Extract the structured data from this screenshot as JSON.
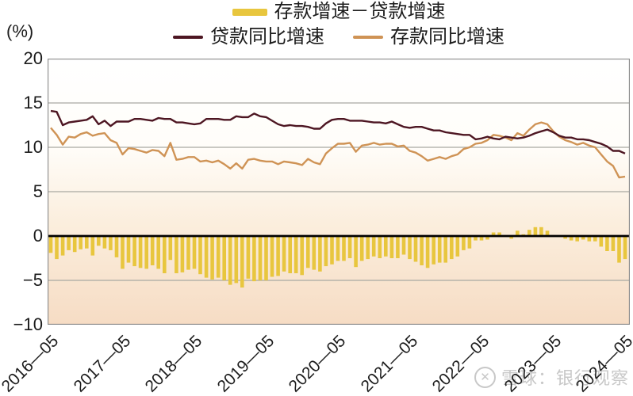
{
  "unit_label": "(%)",
  "colors": {
    "bar": "#e8c63e",
    "loan_line": "#4d1622",
    "deposit_line": "#cf9355",
    "grid": "#a9a9a2",
    "plot_border": "#8d8d8d",
    "zero_line": "#000000",
    "text": "#1c1c1c",
    "watermark": "#c8c8c8",
    "bg_gradient_stops": [
      [
        "0%",
        "#ffffff"
      ],
      [
        "33%",
        "#fffdf9"
      ],
      [
        "62%",
        "#fbeedd"
      ],
      [
        "100%",
        "#f6dcc4"
      ]
    ]
  },
  "legend": [
    {
      "label": "存款增速－贷款增速",
      "type": "bar",
      "color": "#e8c63e"
    },
    {
      "label": "贷款同比增速",
      "type": "line",
      "color": "#4d1622"
    },
    {
      "label": "存款同比增速",
      "type": "line",
      "color": "#cf9355"
    }
  ],
  "watermark": {
    "icon": "xueqiu-logo-icon",
    "glyph": "✕",
    "text": "雪球：银行观察"
  },
  "chart_data": {
    "type": "combo bar+line",
    "x_start": "2016-05",
    "x_end": "2024-05",
    "frequency": "monthly",
    "x_ticks": [
      {
        "index": 0,
        "label": "2016—05"
      },
      {
        "index": 12,
        "label": "2017—05"
      },
      {
        "index": 24,
        "label": "2018—05"
      },
      {
        "index": 36,
        "label": "2019—05"
      },
      {
        "index": 48,
        "label": "2020—05"
      },
      {
        "index": 60,
        "label": "2021—05"
      },
      {
        "index": 72,
        "label": "2022—05"
      },
      {
        "index": 84,
        "label": "2023—05"
      },
      {
        "index": 96,
        "label": "2024—05"
      }
    ],
    "y_ticks": [
      {
        "value": 20,
        "label": "20"
      },
      {
        "value": 15,
        "label": "15"
      },
      {
        "value": 10,
        "label": "10"
      },
      {
        "value": 5,
        "label": "5"
      },
      {
        "value": 0,
        "label": "0"
      },
      {
        "value": -5,
        "label": "−5"
      },
      {
        "value": -10,
        "label": "−10"
      }
    ],
    "grid_values": [
      15,
      10,
      5,
      -5
    ],
    "ylim": [
      -10,
      20
    ],
    "series": [
      {
        "name": "贷款同比增速",
        "type": "line",
        "color": "#4d1622",
        "values": [
          14.1,
          14.0,
          12.5,
          12.8,
          12.9,
          13.0,
          13.1,
          13.5,
          12.6,
          13.0,
          12.4,
          12.9,
          12.9,
          12.9,
          13.2,
          13.2,
          13.1,
          13.0,
          13.3,
          13.2,
          13.2,
          12.8,
          12.8,
          12.7,
          12.6,
          12.7,
          13.2,
          13.2,
          13.2,
          13.1,
          13.1,
          13.5,
          13.4,
          13.4,
          13.8,
          13.5,
          13.4,
          13.0,
          12.6,
          12.4,
          12.5,
          12.4,
          12.4,
          12.3,
          12.1,
          12.1,
          12.7,
          13.1,
          13.2,
          13.2,
          13.0,
          13.0,
          13.0,
          12.9,
          12.8,
          12.8,
          12.7,
          12.9,
          12.6,
          12.3,
          12.2,
          12.3,
          12.3,
          12.1,
          11.9,
          11.9,
          11.7,
          11.6,
          11.5,
          11.4,
          11.4,
          10.9,
          11.0,
          11.2,
          11.0,
          10.9,
          11.2,
          11.1,
          11.0,
          11.1,
          11.3,
          11.6,
          11.8,
          12.0,
          11.7,
          11.3,
          11.1,
          11.1,
          10.9,
          10.9,
          10.8,
          10.6,
          10.4,
          10.1,
          9.6,
          9.6,
          9.3
        ]
      },
      {
        "name": "存款同比增速",
        "type": "line",
        "color": "#cf9355",
        "values": [
          12.2,
          11.4,
          10.3,
          11.2,
          11.1,
          11.5,
          11.7,
          11.3,
          11.5,
          11.6,
          10.8,
          10.5,
          9.2,
          9.9,
          9.8,
          9.6,
          9.4,
          9.7,
          9.6,
          9.0,
          10.5,
          8.6,
          8.7,
          8.9,
          8.9,
          8.4,
          8.5,
          8.3,
          8.5,
          8.1,
          7.6,
          8.2,
          7.6,
          8.6,
          8.7,
          8.5,
          8.4,
          8.4,
          8.1,
          8.4,
          8.3,
          8.2,
          8.0,
          8.7,
          8.3,
          8.1,
          9.3,
          9.9,
          10.4,
          10.4,
          10.5,
          9.5,
          10.2,
          10.3,
          10.5,
          10.3,
          10.4,
          10.4,
          10.1,
          10.2,
          9.6,
          9.4,
          9.0,
          8.5,
          8.7,
          8.9,
          8.7,
          9.0,
          9.2,
          9.8,
          10.0,
          10.4,
          10.5,
          10.8,
          11.4,
          11.3,
          11.1,
          10.8,
          11.6,
          11.3,
          12.0,
          12.6,
          12.8,
          12.6,
          11.8,
          11.2,
          10.8,
          10.6,
          10.3,
          10.5,
          10.2,
          10.0,
          9.2,
          8.4,
          7.9,
          6.6,
          6.7
        ]
      },
      {
        "name": "存款增速－贷款增速",
        "type": "bar",
        "color": "#e8c63e",
        "derived_as": "存款同比增速 − 贷款同比增速"
      }
    ]
  }
}
